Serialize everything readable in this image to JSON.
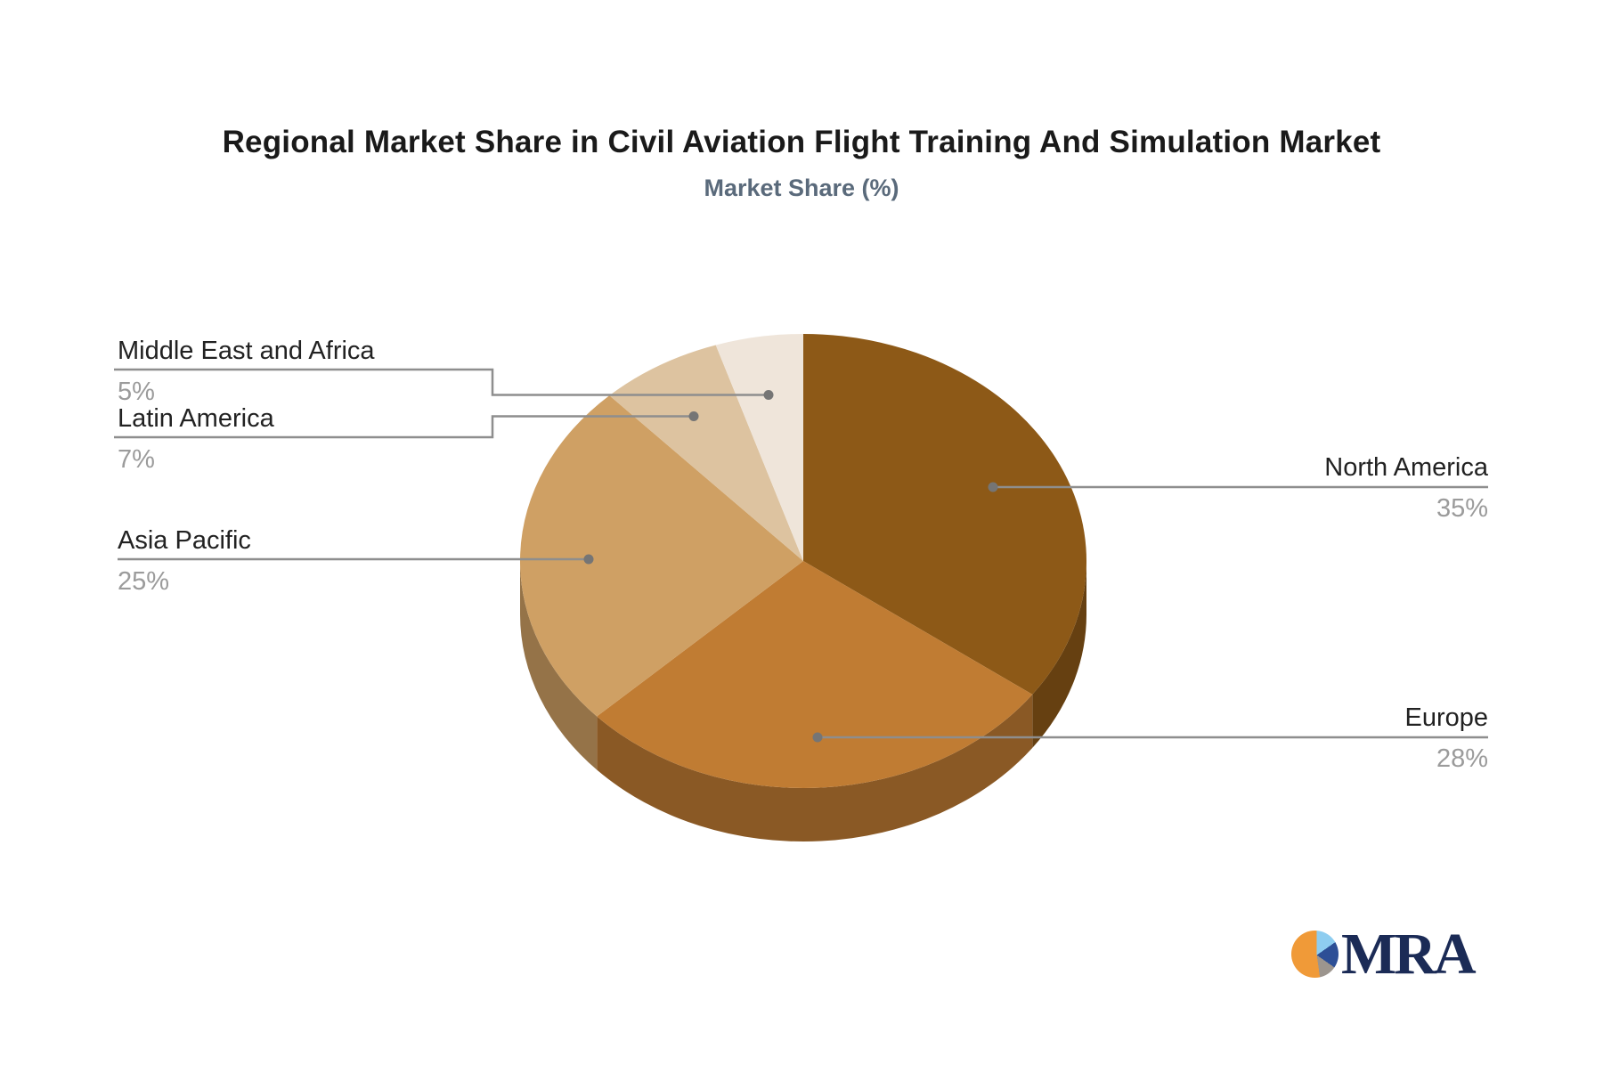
{
  "title": "Regional Market Share in Civil Aviation Flight Training And Simulation Market",
  "subtitle": "Market Share (%)",
  "chart_data": {
    "type": "pie",
    "style": "3d",
    "title": "Regional Market Share in Civil Aviation Flight Training And Simulation Market",
    "subtitle": "Market Share (%)",
    "unit": "%",
    "start_angle_deg": 0,
    "direction": "clockwise",
    "legend_position": "callout-labels",
    "grid": false,
    "slices": [
      {
        "label": "North America",
        "value": 35,
        "pct_label": "35%",
        "color": "#8D5917"
      },
      {
        "label": "Europe",
        "value": 28,
        "pct_label": "28%",
        "color": "#C07C33"
      },
      {
        "label": "Asia Pacific",
        "value": 25,
        "pct_label": "25%",
        "color": "#CFA064"
      },
      {
        "label": "Latin America",
        "value": 7,
        "pct_label": "7%",
        "color": "#DDC3A0"
      },
      {
        "label": "Middle East and Africa",
        "value": 5,
        "pct_label": "5%",
        "color": "#EFE5DA"
      }
    ]
  },
  "colors": {
    "background": "#ffffff",
    "title_text": "#1a1a1a",
    "subtitle_text": "#5a6a7b",
    "label_text": "#222222",
    "percent_text": "#9b9b9b",
    "callout_line": "#8e8e8e"
  },
  "logo": {
    "text": "MRA",
    "text_color": "#1b2b56",
    "icon": "pie-logo-icon",
    "icon_colors": {
      "orange": "#f09a38",
      "light_blue": "#8ecdf0",
      "navy": "#2d4f96",
      "gray": "#9c958e"
    }
  }
}
